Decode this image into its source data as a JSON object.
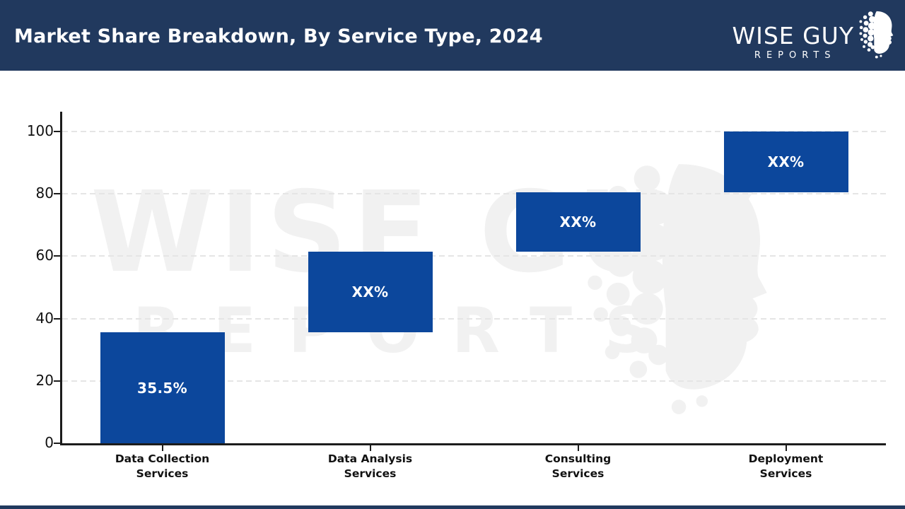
{
  "header": {
    "title": "Market Share Breakdown, By Service Type, 2024",
    "bg_color": "#21395e",
    "text_color": "#ffffff",
    "logo": {
      "line1": "WISE GUY",
      "line2": "REPORTS"
    }
  },
  "watermark": {
    "line1": "WISE GUY",
    "line2": "REPORTS",
    "color": "#f1f1f1"
  },
  "chart_data": {
    "type": "bar",
    "subtype": "waterfall",
    "title": "Market Share Breakdown, By Service Type, 2024",
    "categories": [
      "Data Collection\nServices",
      "Data Analysis\nServices",
      "Consulting\nServices",
      "Deployment\nServices"
    ],
    "segments": [
      {
        "category": "Data Collection Services",
        "start": 0,
        "end": 35.5,
        "label": "35.5%"
      },
      {
        "category": "Data Analysis Services",
        "start": 35.5,
        "end": 61.5,
        "label": "XX%"
      },
      {
        "category": "Consulting Services",
        "start": 61.5,
        "end": 80.5,
        "label": "XX%"
      },
      {
        "category": "Deployment Services",
        "start": 80.5,
        "end": 100,
        "label": "XX%"
      }
    ],
    "yticks": [
      0,
      20,
      40,
      60,
      80,
      100
    ],
    "ylim": [
      0,
      100
    ],
    "xlabel": "",
    "ylabel": "",
    "grid": "dashed-horizontal",
    "legend": "none",
    "bar_color": "#0c479c",
    "bar_label_color": "#ffffff",
    "axis_color": "#1c1c1c"
  }
}
